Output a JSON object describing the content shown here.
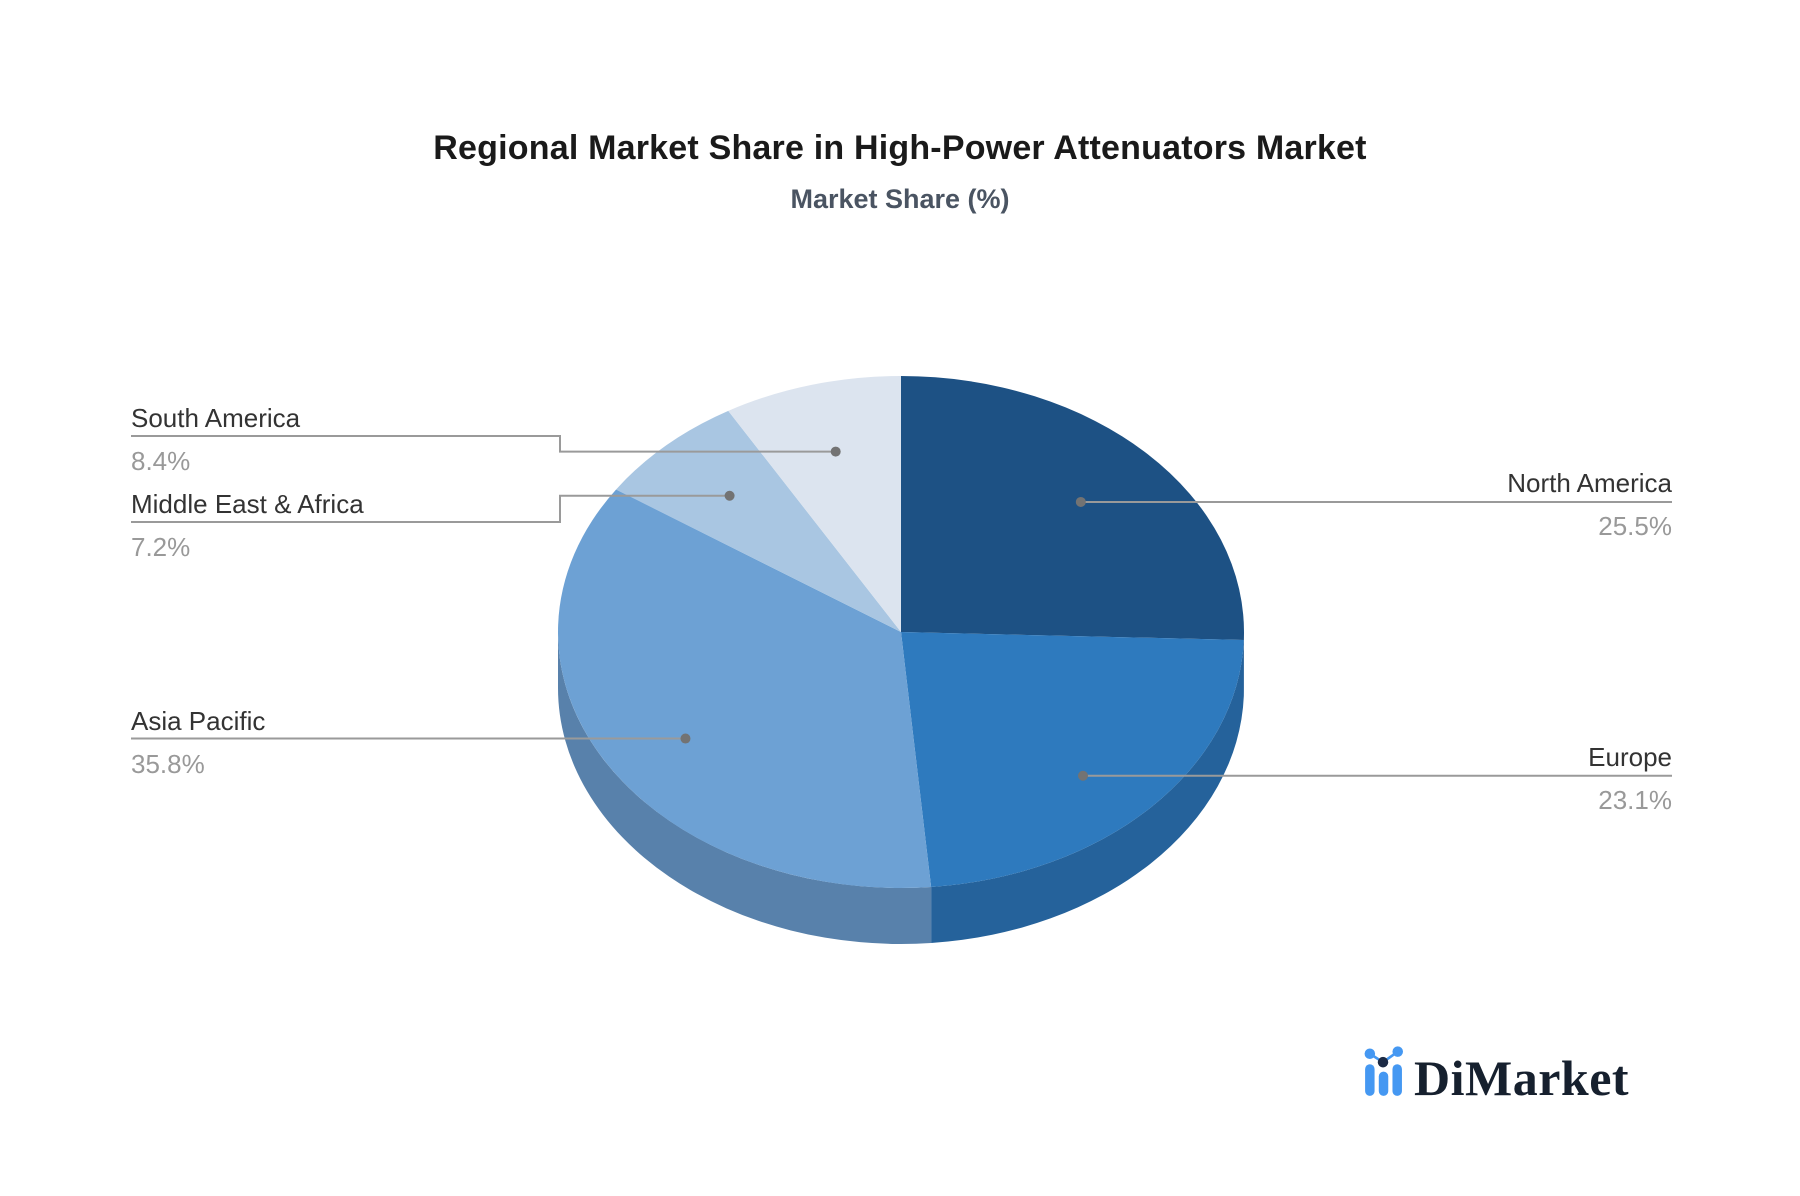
{
  "chart_data": {
    "type": "pie",
    "title": "Regional Market Share in High-Power Attenuators Market",
    "subtitle": "Market Share (%)",
    "unit": "%",
    "start_angle": "top",
    "direction": "clockwise",
    "legend_position": "none",
    "label_style": "callout leader lines with region name above line and percent below",
    "effect": "3d depth rim on lower half",
    "series": [
      {
        "name": "North America",
        "value": 25.5,
        "pct_label": "25.5%",
        "color": "#1d5184",
        "rim_color": "#173f68",
        "label_side": "right"
      },
      {
        "name": "Europe",
        "value": 23.1,
        "pct_label": "23.1%",
        "color": "#2e7abe",
        "rim_color": "#25629b",
        "label_side": "right"
      },
      {
        "name": "Asia Pacific",
        "value": 35.8,
        "pct_label": "35.8%",
        "color": "#6da1d4",
        "rim_color": "#5881ab",
        "label_side": "left"
      },
      {
        "name": "Middle East & Africa",
        "value": 7.2,
        "pct_label": "7.2%",
        "color": "#a9c6e2",
        "rim_color": "#8aa9c6",
        "label_side": "left"
      },
      {
        "name": "South America",
        "value": 8.4,
        "pct_label": "8.4%",
        "color": "#dce4ef",
        "rim_color": "#b9c4d4",
        "label_side": "left"
      }
    ]
  },
  "branding": {
    "logo_text": "DiMarket",
    "icon_color": "#4598f2",
    "icon_dot_color": "#1d2b45",
    "text_color": "#16202e"
  },
  "colors": {
    "background": "#ffffff",
    "title": "#1a1a1a",
    "subtitle": "#4a5462",
    "label_text": "#333333",
    "pct_text": "#999999",
    "leader_line": "#9a9a9a",
    "dot": "#737373"
  }
}
